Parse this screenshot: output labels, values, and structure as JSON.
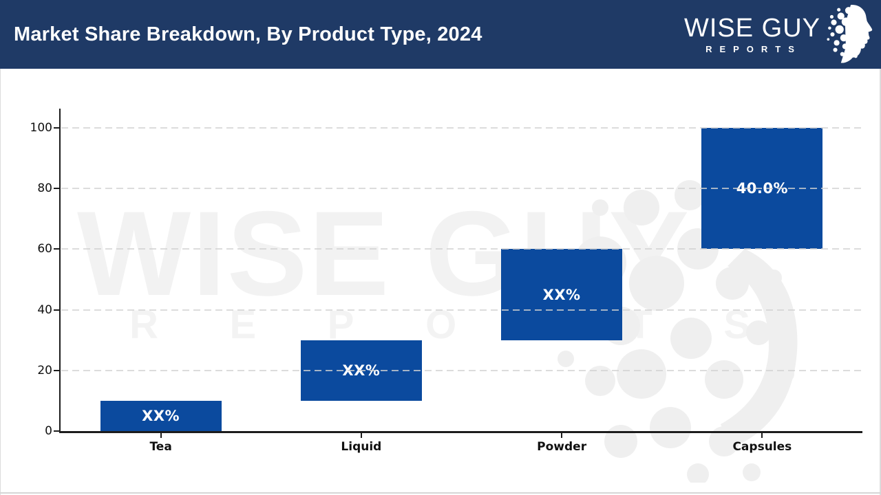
{
  "header": {
    "title": "Market Share Breakdown, By Product Type, 2024",
    "background": "#1f3a66",
    "logo": {
      "line1": "WISE GUY",
      "line2": "REPORTS"
    }
  },
  "watermark": {
    "line1": "WISE GUY",
    "line2": "REPORTS"
  },
  "chart_data": {
    "type": "bar",
    "subtype": "waterfall",
    "title": "Market Share Breakdown, By Product Type, 2024",
    "categories": [
      "Tea",
      "Liquid",
      "Powder",
      "Capsules"
    ],
    "segments": [
      {
        "category": "Tea",
        "start": 0,
        "end": 10,
        "label": "XX%"
      },
      {
        "category": "Liquid",
        "start": 10,
        "end": 30,
        "label": "XX%"
      },
      {
        "category": "Powder",
        "start": 30,
        "end": 60,
        "label": "XX%"
      },
      {
        "category": "Capsules",
        "start": 60,
        "end": 100,
        "label": "40.0%"
      }
    ],
    "yticks": [
      0,
      20,
      40,
      60,
      80,
      100
    ],
    "ylim": [
      0,
      105
    ],
    "xlabel": "",
    "ylabel": "",
    "grid": "dashed-horizontal",
    "legend": "none",
    "bar_color": "#0b4a9e",
    "bar_label_color": "#ffffff"
  }
}
